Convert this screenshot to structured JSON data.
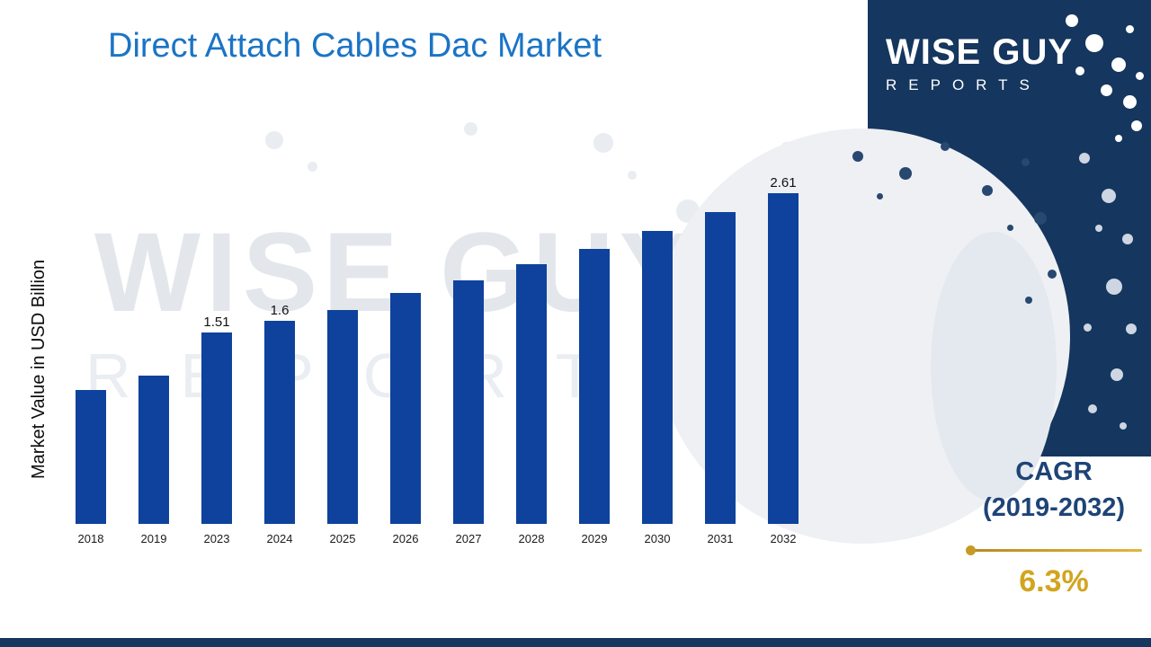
{
  "title": "Direct Attach Cables Dac Market",
  "y_axis_label": "Market Value in USD Billion",
  "logo": {
    "line1": "WISE GUY",
    "line2": "REPORTS"
  },
  "watermark": {
    "line1": "WISE GUY",
    "line2": "REPORTS"
  },
  "cagr": {
    "line1": "CAGR",
    "line2": "(2019-2032)",
    "value": "6.3%"
  },
  "colors": {
    "bar": "#0e429c",
    "title": "#1b74c5",
    "panel": "#15365e",
    "gold": "#d2a51e",
    "watermark": "#e3e7ec"
  },
  "chart_data": {
    "type": "bar",
    "title": "Direct Attach Cables Dac Market",
    "ylabel": "Market Value in USD Billion",
    "xlabel": "",
    "categories": [
      "2018",
      "2019",
      "2023",
      "2024",
      "2025",
      "2026",
      "2027",
      "2028",
      "2029",
      "2030",
      "2031",
      "2032"
    ],
    "values": [
      1.06,
      1.17,
      1.51,
      1.6,
      1.69,
      1.82,
      1.92,
      2.05,
      2.17,
      2.31,
      2.46,
      2.61
    ],
    "data_labels": [
      "",
      "",
      "1.51",
      "1.6",
      "",
      "",
      "",
      "",
      "",
      "",
      "",
      "2.61"
    ],
    "ylim": [
      0,
      2.8
    ],
    "grid": false,
    "legend": false
  }
}
